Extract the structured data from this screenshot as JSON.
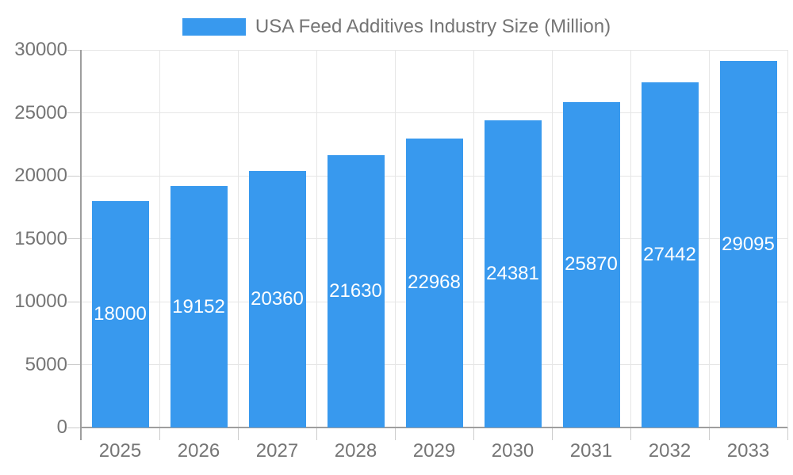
{
  "legend": {
    "label": "USA Feed Additives Industry Size (Million)"
  },
  "chart_data": {
    "type": "bar",
    "title": "USA Feed Additives Industry Size (Million)",
    "series_name": "USA Feed Additives Industry Size (Million)",
    "categories": [
      "2025",
      "2026",
      "2027",
      "2028",
      "2029",
      "2030",
      "2031",
      "2032",
      "2033"
    ],
    "values": [
      18000,
      19152,
      20360,
      21630,
      22968,
      24381,
      25870,
      27442,
      29095
    ],
    "xlabel": "",
    "ylabel": "",
    "ylim": [
      0,
      30000
    ],
    "ytick_step": 5000,
    "ytick_labels": [
      "0",
      "5000",
      "10000",
      "15000",
      "20000",
      "25000",
      "30000"
    ],
    "grid": true,
    "legend_position": "top-center",
    "value_label_position": "inside-center",
    "colors": {
      "bar": "#3899EE",
      "tick_label": "#757575",
      "grid_line": "#e6e6e6",
      "axis_line": "#9e9e9e",
      "tick_line": "#cccccc",
      "value_label": "#ffffff",
      "background": "#ffffff"
    }
  }
}
